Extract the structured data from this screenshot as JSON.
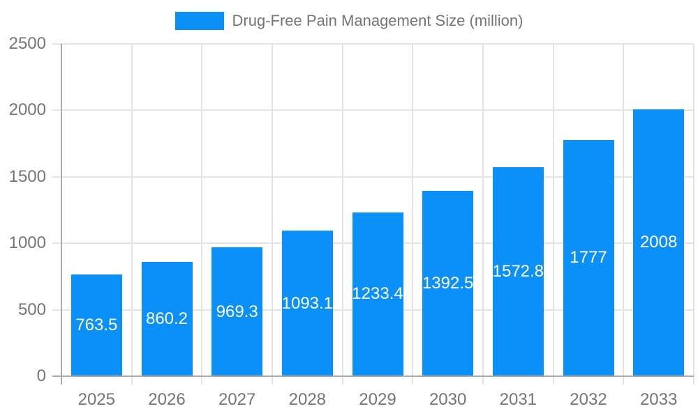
{
  "chart_data": {
    "type": "bar",
    "title": "Drug-Free Pain Management Size (million)",
    "categories": [
      "2025",
      "2026",
      "2027",
      "2028",
      "2029",
      "2030",
      "2031",
      "2032",
      "2033"
    ],
    "series": [
      {
        "name": "Drug-Free Pain Management Size (million)",
        "values": [
          763.5,
          860.2,
          969.3,
          1093.1,
          1233.4,
          1392.5,
          1572.8,
          1777,
          2008
        ]
      }
    ],
    "value_labels": [
      "763.5",
      "860.2",
      "969.3",
      "1093.1",
      "1233.4",
      "1392.5",
      "1572.8",
      "1777",
      "2008"
    ],
    "xlabel": "",
    "ylabel": "",
    "ylim": [
      0,
      2500
    ],
    "y_ticks": [
      0,
      500,
      1000,
      1500,
      2000,
      2500
    ],
    "grid": true,
    "legend_position": "top-center",
    "colors": {
      "bar": "#0A90F8",
      "grid_line": "#E4E4E4",
      "axis_line": "#ABABAB",
      "tick_text": "#757575",
      "value_label_text": "#FFFFFF",
      "background": "#FFFFFF"
    }
  }
}
